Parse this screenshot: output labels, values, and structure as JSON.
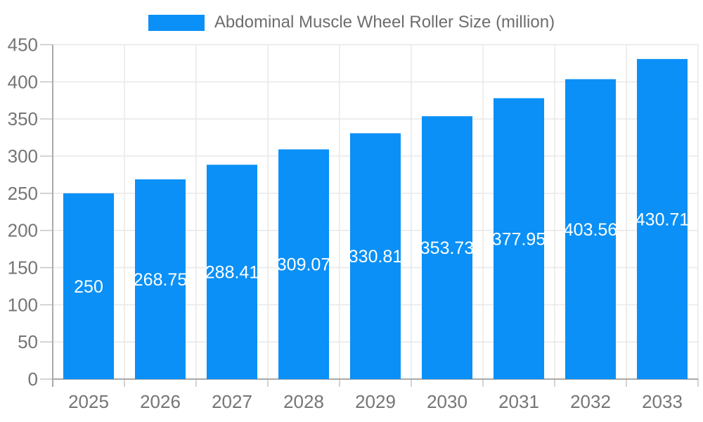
{
  "chart_data": {
    "type": "bar",
    "title": "Abdominal Muscle Wheel Roller Size (million)",
    "categories": [
      "2025",
      "2026",
      "2027",
      "2028",
      "2029",
      "2030",
      "2031",
      "2032",
      "2033"
    ],
    "series": [
      {
        "name": "Abdominal Muscle Wheel Roller Size (million)",
        "values": [
          250,
          268.75,
          288.41,
          309.07,
          330.81,
          353.73,
          377.95,
          403.56,
          430.71
        ]
      }
    ],
    "value_labels": [
      "250",
      "268.75",
      "288.41",
      "309.07",
      "330.81",
      "353.73",
      "377.95",
      "403.56",
      "430.71"
    ],
    "xlabel": "",
    "ylabel": "",
    "ylim": [
      0,
      450
    ],
    "ytick_step": 50,
    "ytick_labels": [
      "0",
      "50",
      "100",
      "150",
      "200",
      "250",
      "300",
      "350",
      "400",
      "450"
    ],
    "grid": true,
    "legend_position": "top",
    "value_label_position": "inside-center",
    "colors": {
      "bar": "#0a90f7",
      "grid": "#e8e8e8",
      "tick": "#c6c6c6",
      "axis": "#a9a9a9",
      "axis_label": "#757575",
      "value_label": "#ffffff",
      "legend_text": "#6d6d6d",
      "background": "#ffffff"
    }
  }
}
